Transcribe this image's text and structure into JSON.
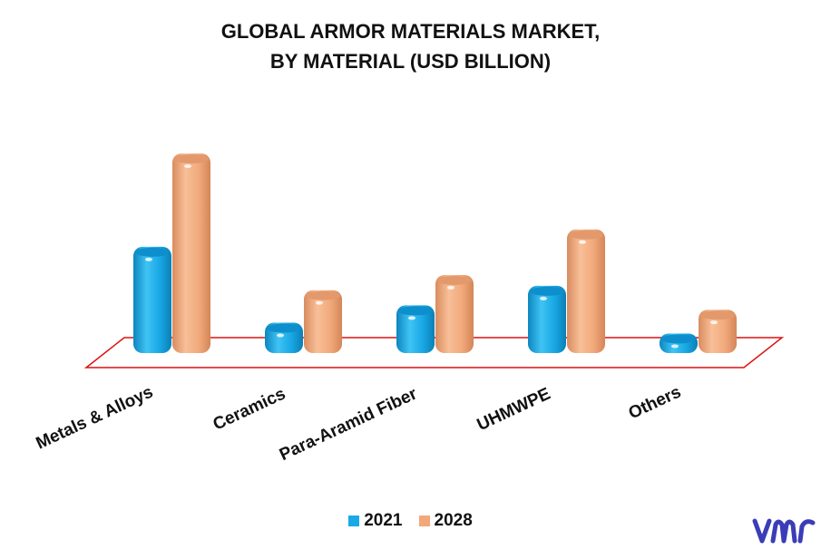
{
  "chart_data": {
    "type": "bar",
    "title": "GLOBAL ARMOR MATERIALS MARKET,",
    "subtitle": "BY MATERIAL (USD BILLION)",
    "categories": [
      "Metals & Alloys",
      "Ceramics",
      "Para-Aramid Fiber",
      "UHMWPE",
      "Others"
    ],
    "series": [
      {
        "name": "2021",
        "values": [
          4.9,
          1.4,
          2.2,
          3.1,
          0.9
        ]
      },
      {
        "name": "2028",
        "values": [
          9.2,
          2.9,
          3.6,
          5.7,
          2.0
        ]
      }
    ],
    "ylim": [
      0,
      10
    ],
    "grid": false,
    "legend": "bottom"
  },
  "colors": {
    "2021": "#1aa9e6",
    "2028": "#f2a87a",
    "floor_outline": "#dd1111",
    "logo": "#3b3db8"
  },
  "legend_labels": [
    "2021",
    "2028"
  ],
  "logo_icon": "vmr-logo"
}
